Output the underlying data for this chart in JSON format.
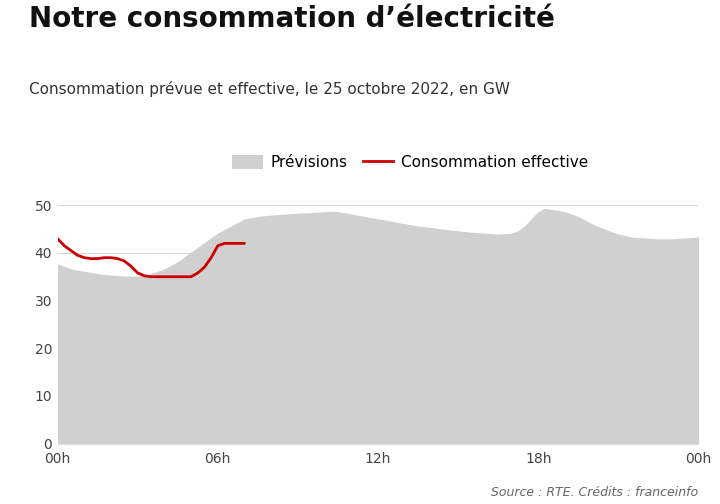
{
  "title": "Notre consommation d’électricité",
  "subtitle": "Consommation prévue et effective, le 25 octobre 2022, en GW",
  "source": "Source : RTE. Crédits : franceinfo",
  "ylim": [
    0,
    55
  ],
  "yticks": [
    0,
    10,
    20,
    30,
    40,
    50
  ],
  "xtick_labels": [
    "00h",
    "06h",
    "12h",
    "18h",
    "00h"
  ],
  "xtick_positions": [
    0,
    6,
    12,
    18,
    24
  ],
  "background_color": "#ffffff",
  "grid_color": "#d8d8d8",
  "forecast_color": "#d0d0d0",
  "effective_color": "#cc0000",
  "legend_label_forecast": "Prévisions",
  "legend_label_effective": "Consommation effective",
  "forecast_x": [
    0,
    0.5,
    1,
    1.5,
    2,
    2.5,
    3,
    3.25,
    3.5,
    3.75,
    4,
    4.5,
    5,
    5.5,
    6,
    6.5,
    7,
    7.5,
    8,
    8.5,
    9,
    9.5,
    10,
    10.25,
    10.5,
    10.75,
    11,
    11.5,
    12,
    12.5,
    13,
    13.5,
    14,
    14.5,
    15,
    15.5,
    16,
    16.5,
    17,
    17.25,
    17.5,
    17.75,
    18,
    18.25,
    18.5,
    19,
    19.5,
    20,
    20.5,
    21,
    21.5,
    22,
    22.5,
    23,
    23.5,
    24
  ],
  "forecast_y": [
    37.5,
    36.5,
    36,
    35.5,
    35.2,
    35,
    35,
    35.2,
    35.5,
    36,
    36.5,
    38,
    40,
    42,
    44,
    45.5,
    47,
    47.5,
    47.8,
    48,
    48.2,
    48.3,
    48.5,
    48.6,
    48.5,
    48.3,
    48,
    47.5,
    47,
    46.5,
    46,
    45.5,
    45.2,
    44.8,
    44.5,
    44.2,
    44,
    43.8,
    44,
    44.5,
    45.5,
    47,
    48.5,
    49.2,
    49,
    48.5,
    47.5,
    46,
    44.8,
    43.8,
    43.2,
    43,
    42.8,
    42.8,
    43,
    43.2
  ],
  "effective_x": [
    0,
    0.25,
    0.5,
    0.75,
    1,
    1.25,
    1.5,
    1.75,
    2,
    2.25,
    2.5,
    2.75,
    3,
    3.25,
    3.5,
    3.75,
    4,
    4.25,
    4.5,
    4.75,
    5,
    5.25,
    5.5,
    5.75,
    6,
    6.25,
    6.5,
    6.75,
    7
  ],
  "effective_y": [
    43,
    41.5,
    40.5,
    39.5,
    39,
    38.8,
    38.8,
    39,
    39,
    38.8,
    38.3,
    37.2,
    35.8,
    35.2,
    35,
    35,
    35,
    35,
    35,
    35,
    35,
    35.8,
    37,
    39,
    41.5,
    42,
    42,
    42,
    42
  ]
}
